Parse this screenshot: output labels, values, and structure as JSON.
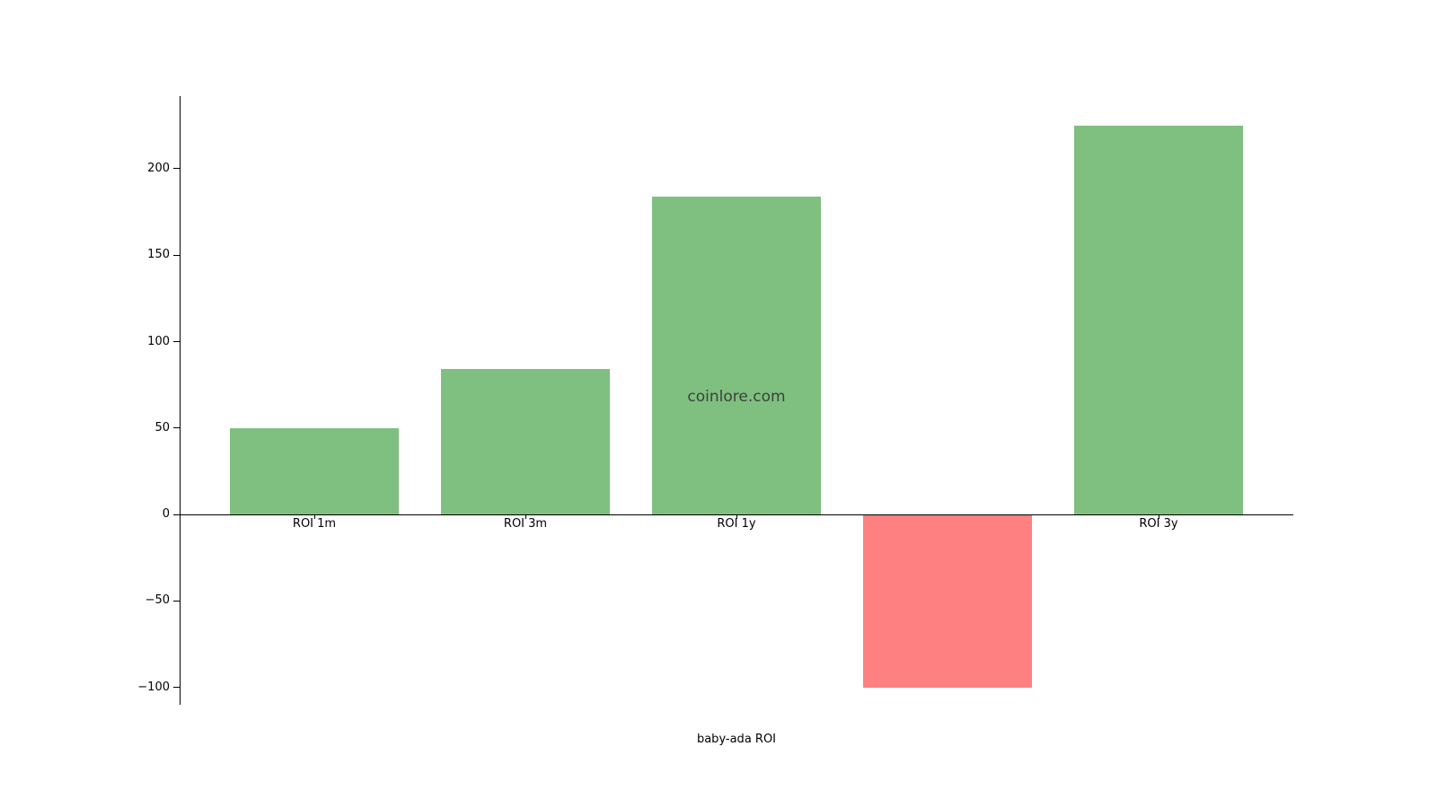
{
  "chart_data": {
    "type": "bar",
    "title": "baby-ada ROI",
    "watermark": "coinlore.com",
    "categories": [
      "ROI 1m",
      "ROI 3m",
      "ROI 1y",
      "",
      "ROI 3y"
    ],
    "values": [
      50,
      84,
      184,
      -100,
      225
    ],
    "bar_colors": [
      "#7fbf80",
      "#7fbf80",
      "#7fbf80",
      "#ff8080",
      "#7fbf80"
    ],
    "positive_color": "#7fbf80",
    "negative_color": "#ff8080",
    "ytick_values": [
      200,
      150,
      100,
      50,
      0,
      -50,
      -100
    ],
    "ytick_labels": [
      "200",
      "150",
      "100",
      "50",
      "0",
      "−50",
      "−100"
    ],
    "ylim": [
      -110,
      242
    ],
    "grid": false,
    "legend": "none",
    "title_position": "bottom"
  }
}
